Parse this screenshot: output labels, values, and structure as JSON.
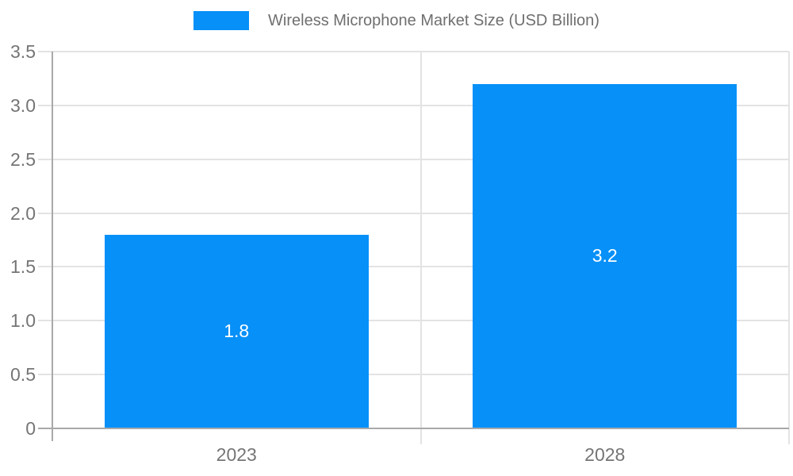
{
  "chart_data": {
    "type": "bar",
    "title": "Wireless Microphone Market Size (USD Billion)",
    "categories": [
      "2023",
      "2028"
    ],
    "values": [
      1.8,
      3.2
    ],
    "bar_labels": [
      "1.8",
      "3.2"
    ],
    "series": [
      {
        "name": "Wireless Microphone Market Size (USD Billion)",
        "values": [
          1.8,
          3.2
        ]
      }
    ],
    "xlabel": "",
    "ylabel": "",
    "ylim": [
      0,
      3.5
    ],
    "ytick_step": 0.5,
    "ytick_labels": [
      "0",
      "0.5",
      "1.0",
      "1.5",
      "2.0",
      "2.5",
      "3.0",
      "3.5"
    ],
    "grid": true,
    "legend_position": "top"
  },
  "style": {
    "bar_color": "#0690f8",
    "bar_label_color": "#ffffff",
    "tick_label_color": "#757575",
    "legend_label_color": "#6f6f6f",
    "grid_color": "#e3e3e3",
    "axis_color": "#a9a9a9",
    "background_color": "#ffffff"
  }
}
